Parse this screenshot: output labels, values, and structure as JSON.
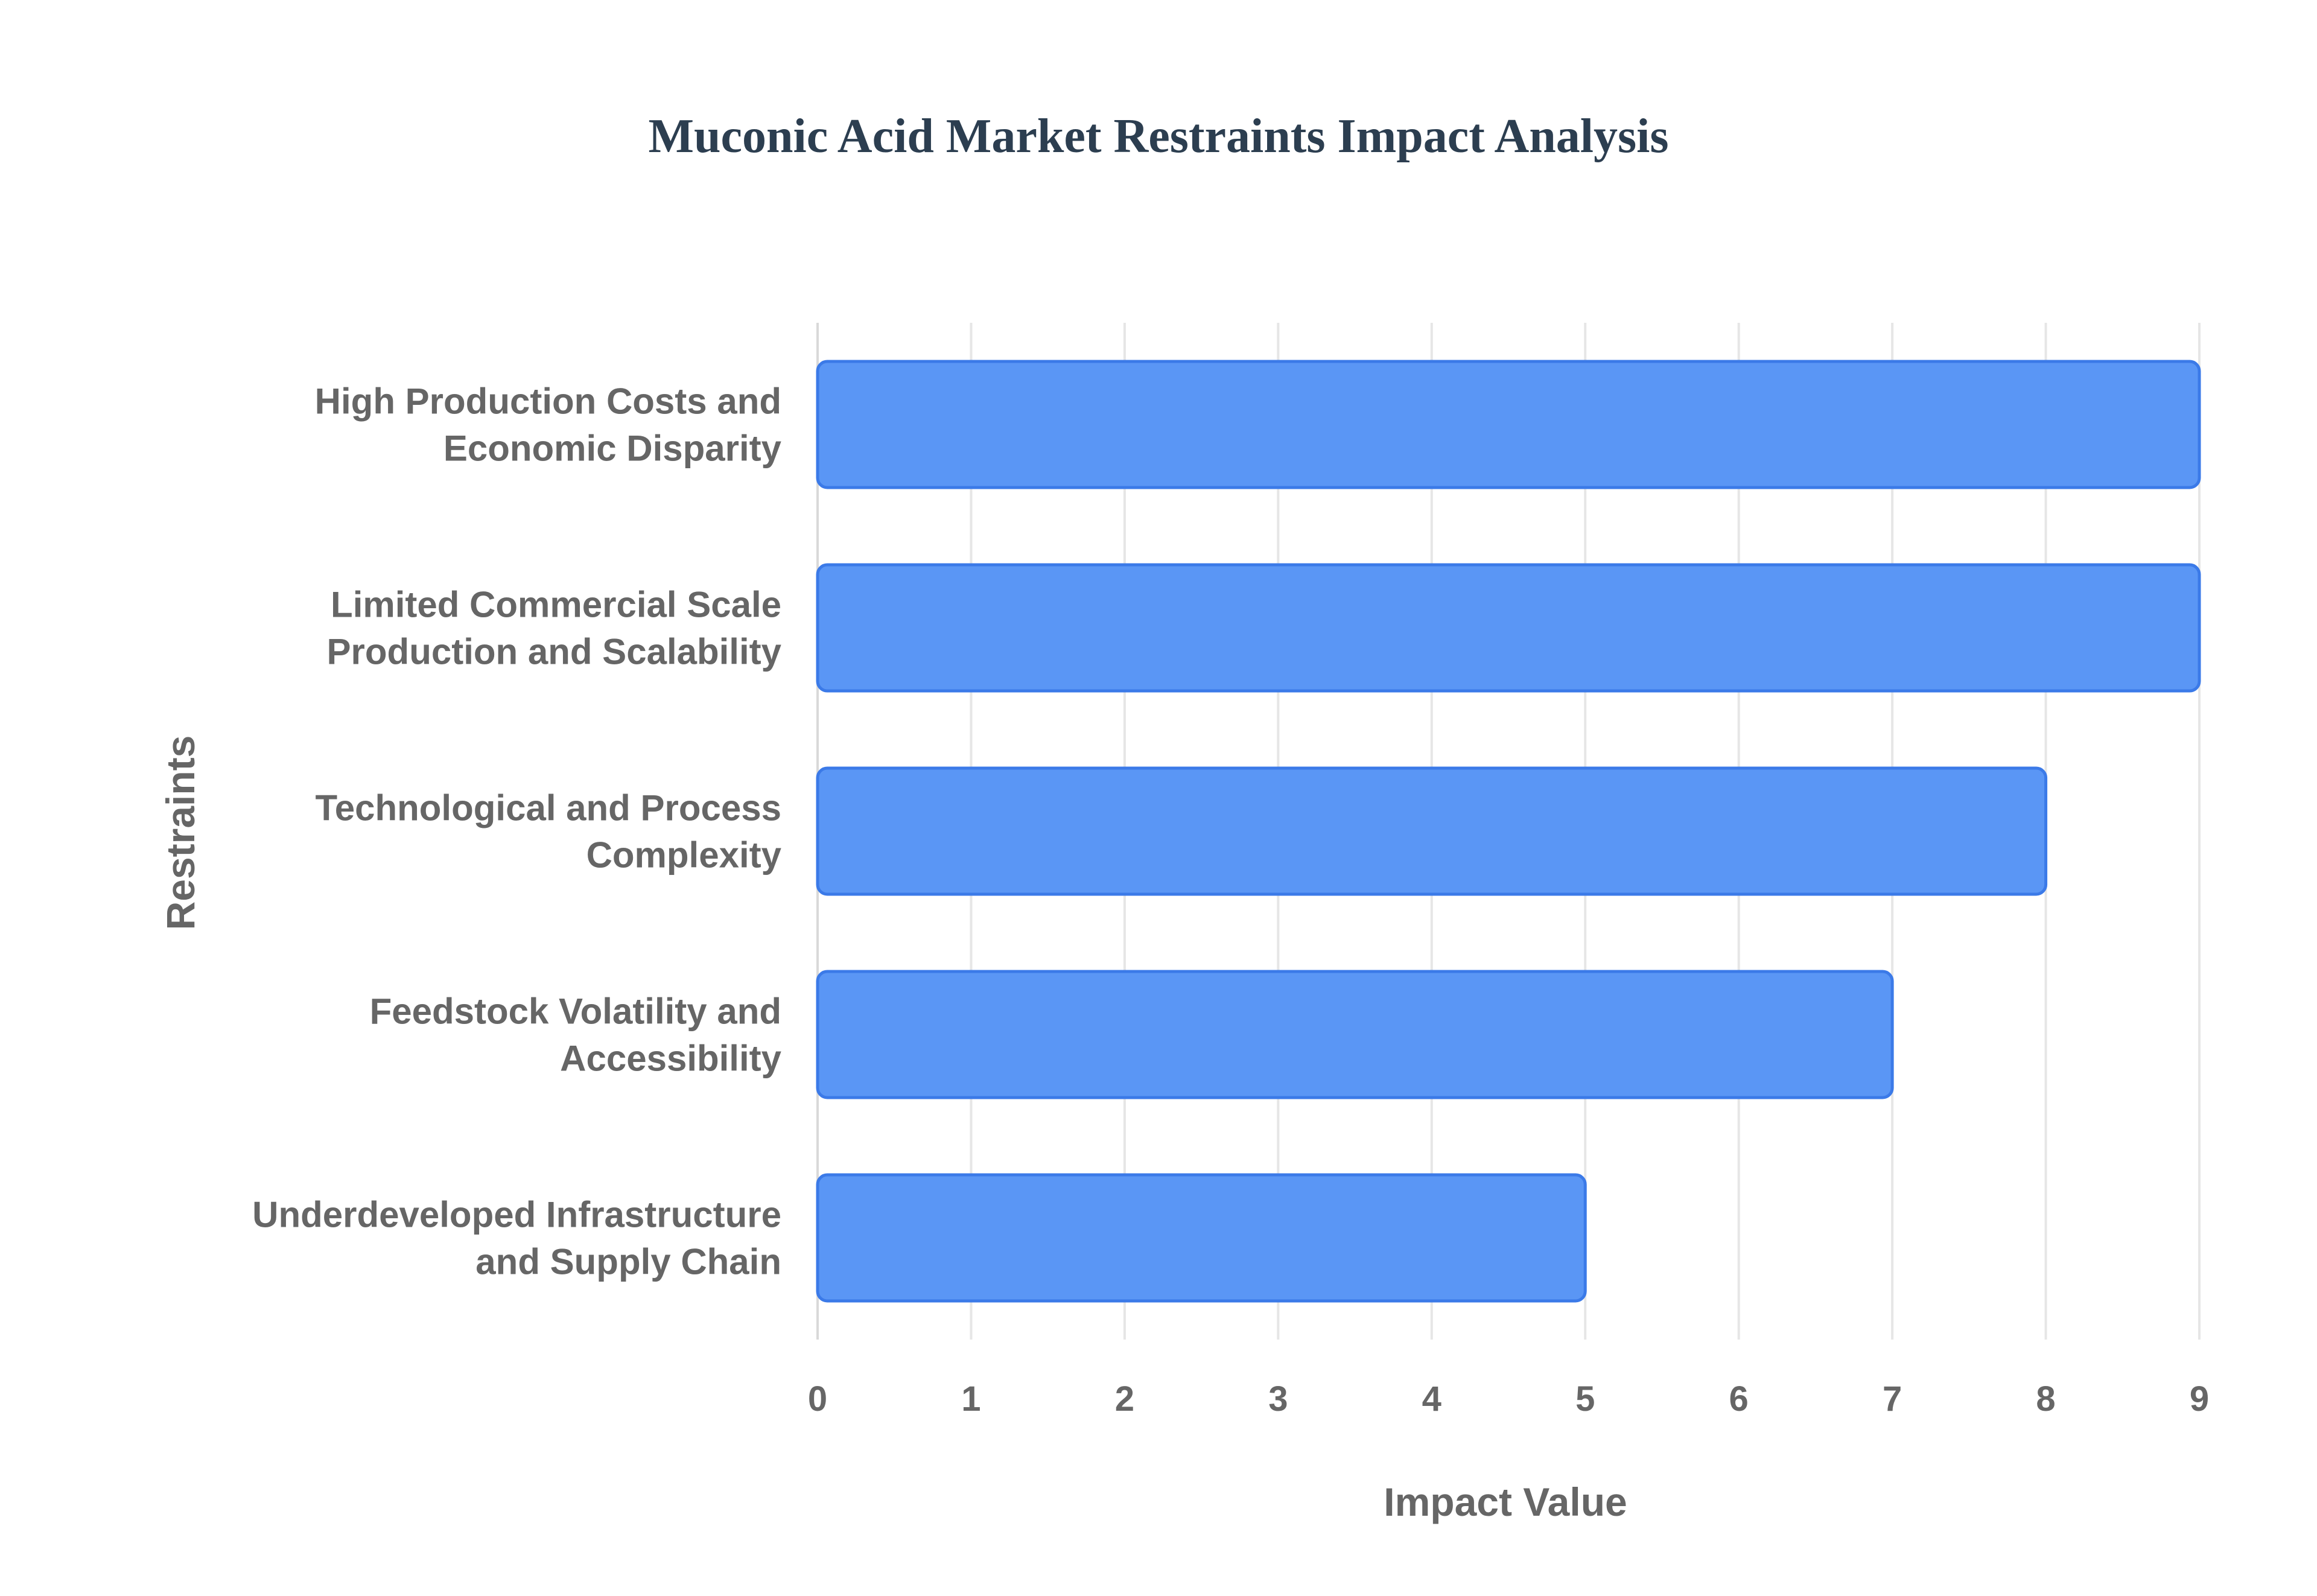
{
  "chart_data": {
    "type": "bar",
    "orientation": "horizontal",
    "title": "Muconic Acid Market Restraints Impact Analysis",
    "xlabel": "Impact Value",
    "ylabel": "Restraints",
    "categories": [
      [
        "High Production Costs and",
        "Economic Disparity"
      ],
      [
        "Limited Commercial Scale",
        "Production and Scalability"
      ],
      [
        "Technological and Process",
        "Complexity"
      ],
      [
        "Feedstock Volatility and",
        "Accessibility"
      ],
      [
        "Underdeveloped Infrastructure",
        "and Supply Chain"
      ]
    ],
    "values": [
      9,
      9,
      8,
      7,
      5
    ],
    "xlim": [
      0,
      9
    ],
    "xticks": [
      "0",
      "1",
      "2",
      "3",
      "4",
      "5",
      "6",
      "7",
      "8",
      "9"
    ],
    "grid": true,
    "legend": "none",
    "colors": {
      "bar_fill": "#5a96f5",
      "bar_stroke": "#3b7ae8",
      "title": "#2c3e50",
      "axis_text": "#666666",
      "grid": "#e6e6e6"
    }
  }
}
